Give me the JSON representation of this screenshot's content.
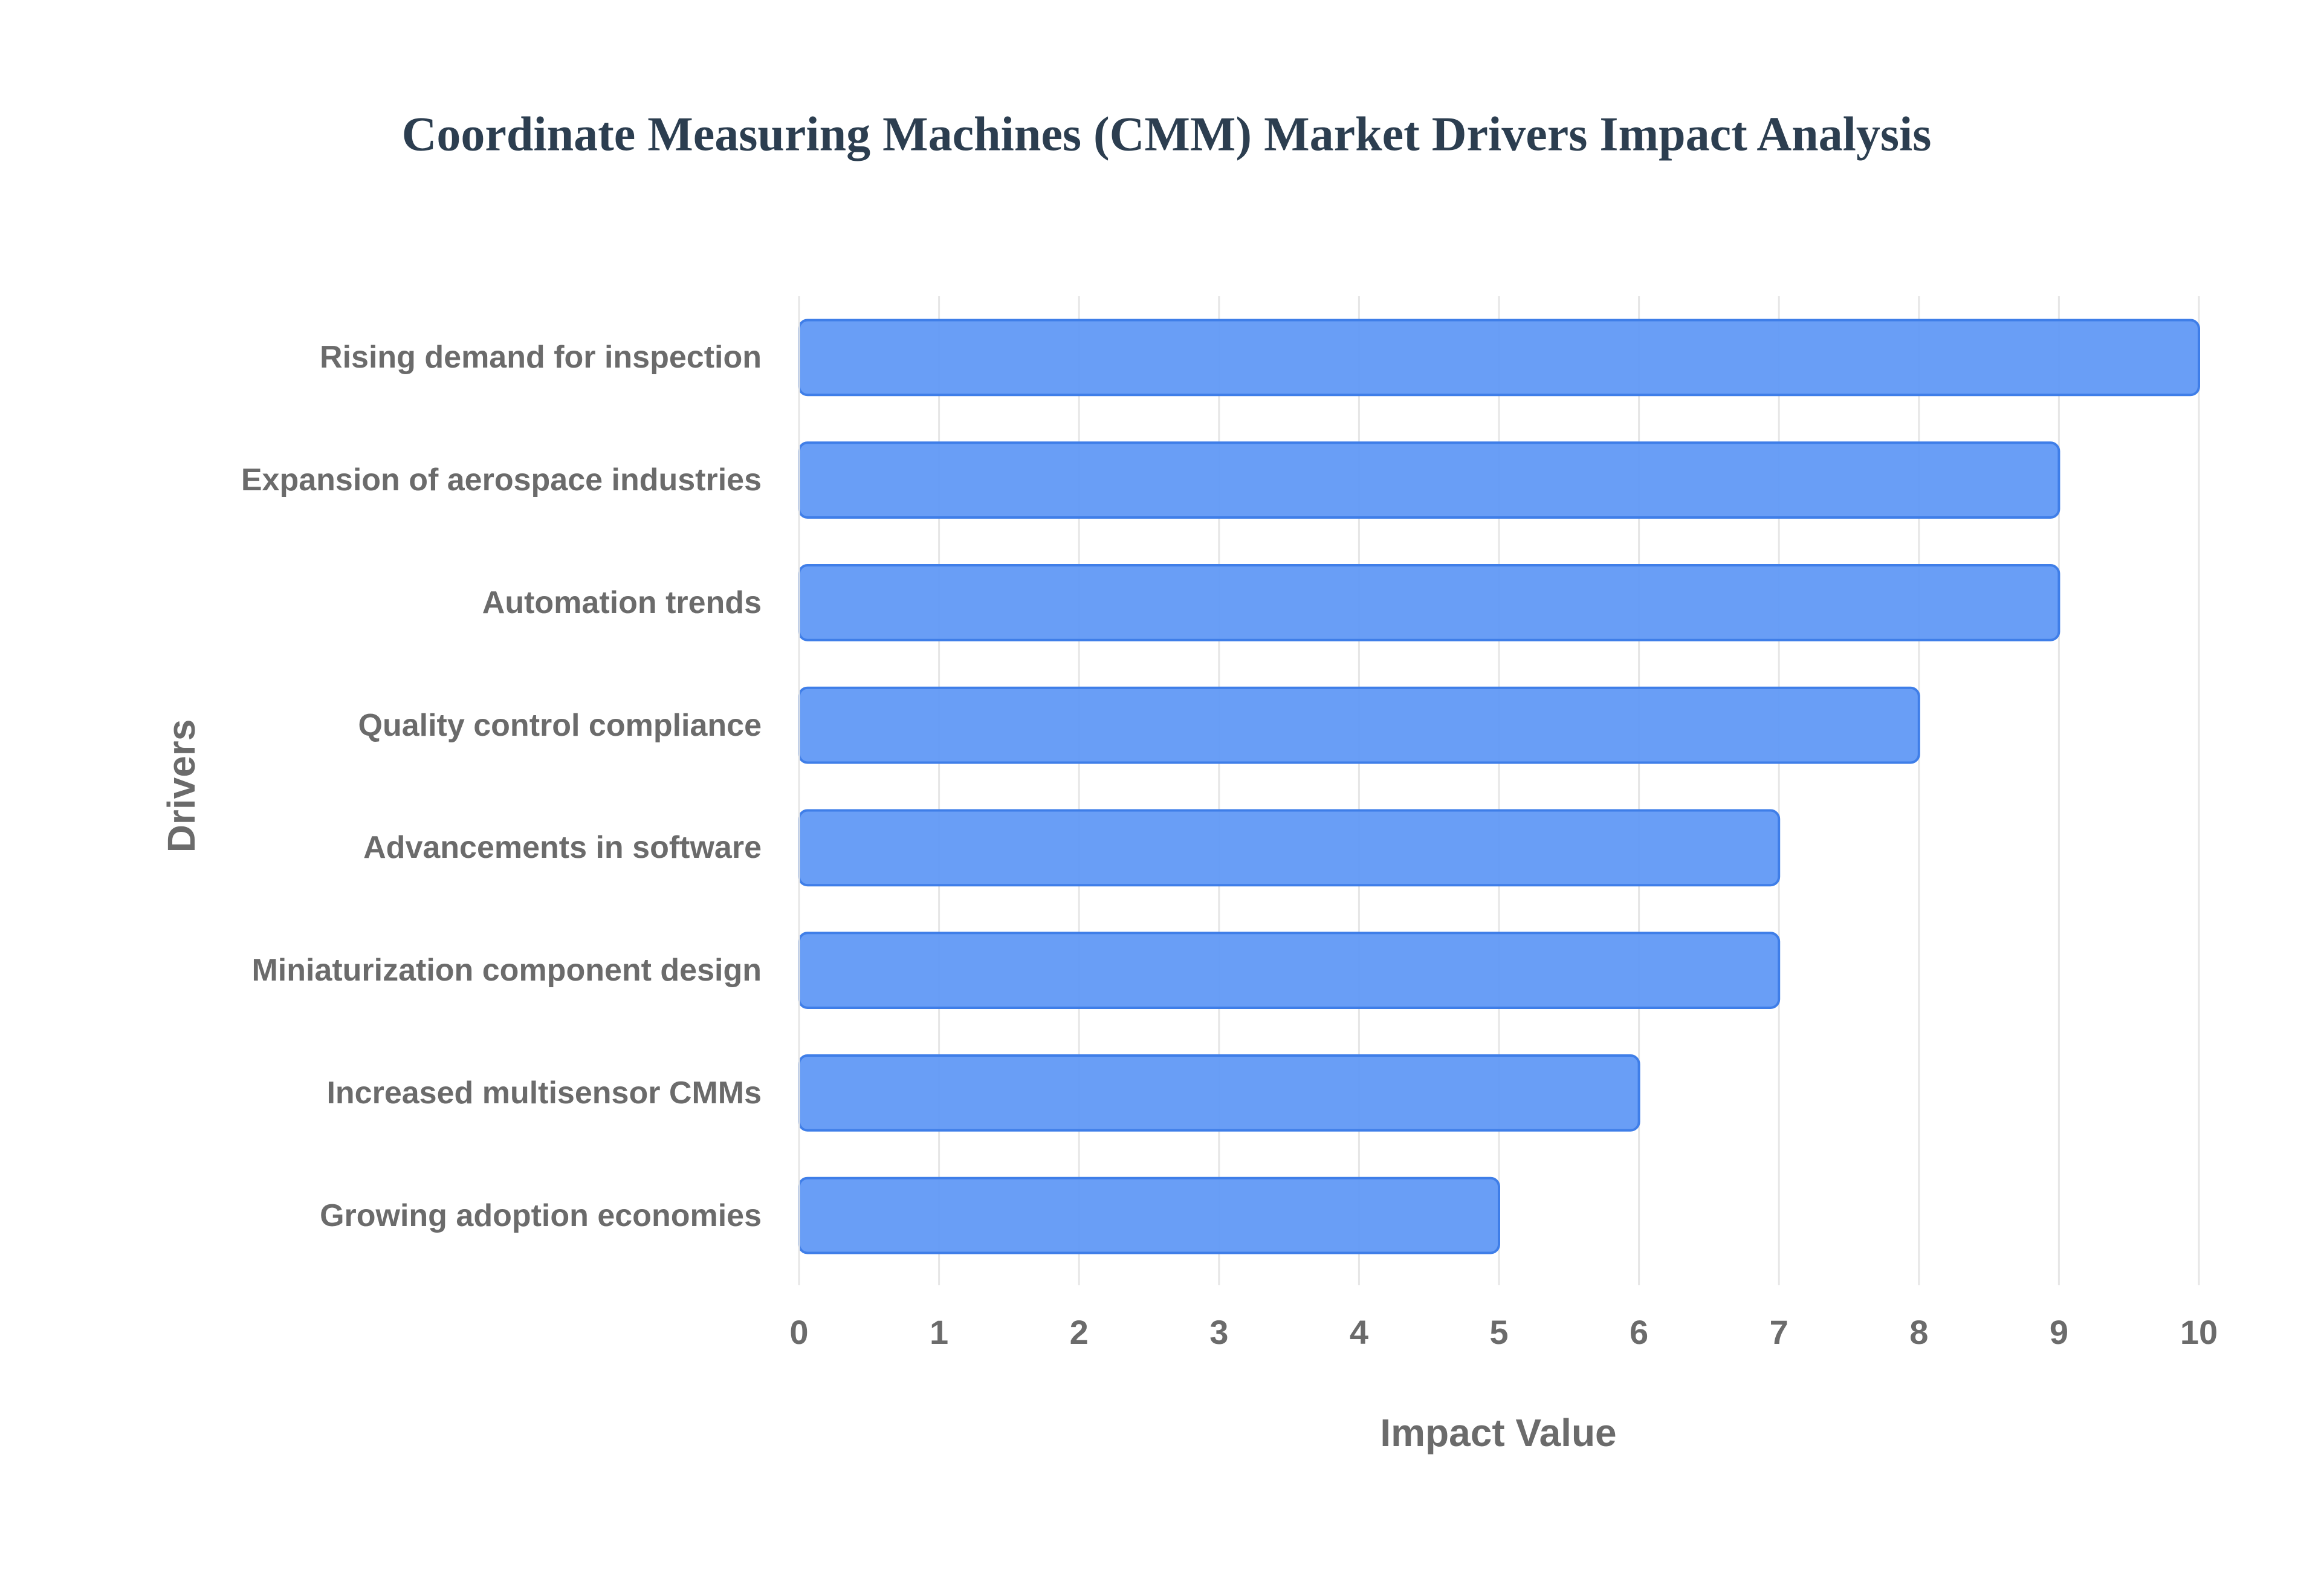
{
  "chart_data": {
    "type": "bar",
    "orientation": "horizontal",
    "title": "Coordinate Measuring Machines (CMM) Market Drivers Impact Analysis",
    "x_label": "Impact Value",
    "y_label": "Drivers",
    "categories": [
      "Rising demand for inspection",
      "Expansion of aerospace industries",
      "Automation trends",
      "Quality control compliance",
      "Advancements in software",
      "Miniaturization component design",
      "Increased multisensor CMMs",
      "Growing adoption economies"
    ],
    "values": [
      10,
      9,
      9,
      8,
      7,
      7,
      6,
      5
    ],
    "color": "#6199f5",
    "edge_color": "#3f7ee8",
    "xlim": [
      0,
      10
    ],
    "xticks": [
      0,
      1,
      2,
      3,
      4,
      5,
      6,
      7,
      8,
      9,
      10
    ],
    "grid": true
  }
}
